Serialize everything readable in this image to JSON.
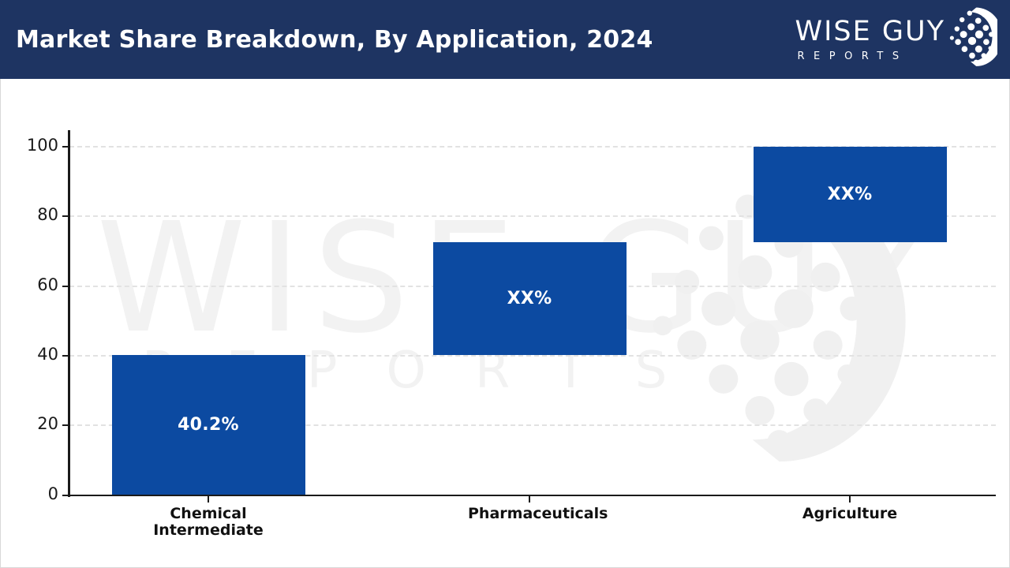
{
  "header": {
    "title": "Market Share Breakdown, By Application, 2024"
  },
  "logo": {
    "line1": "WISE GUY",
    "line2": "REPORTS"
  },
  "watermark": {
    "line1": "WISE GUY",
    "line2": "REPORTS"
  },
  "theme": {
    "header_bg": "#1e3462",
    "bar_color": "#0c4aa1",
    "grid_color": "#e2e2e2",
    "axis_color": "#1a1a1a",
    "bar_label_color": "#ffffff"
  },
  "chart_data": {
    "type": "bar",
    "variant": "floating-stacked-bars",
    "title": "Market Share Breakdown, By Application, 2024",
    "categories": [
      "Chemical Intermediate",
      "Pharmaceuticals",
      "Agriculture"
    ],
    "bars": [
      {
        "category": "Chemical Intermediate",
        "from": 0,
        "to": 40.2,
        "label": "40.2%"
      },
      {
        "category": "Pharmaceuticals",
        "from": 40.2,
        "to": 72.7,
        "label": "XX%"
      },
      {
        "category": "Agriculture",
        "from": 72.7,
        "to": 100,
        "label": "XX%"
      }
    ],
    "yticks": [
      0,
      20,
      40,
      60,
      80,
      100
    ],
    "ylim": [
      0,
      104
    ],
    "xlabel": "",
    "ylabel": "",
    "grid": "horizontal-dashed",
    "legend": "none",
    "bar_value_labels_inside": true
  }
}
